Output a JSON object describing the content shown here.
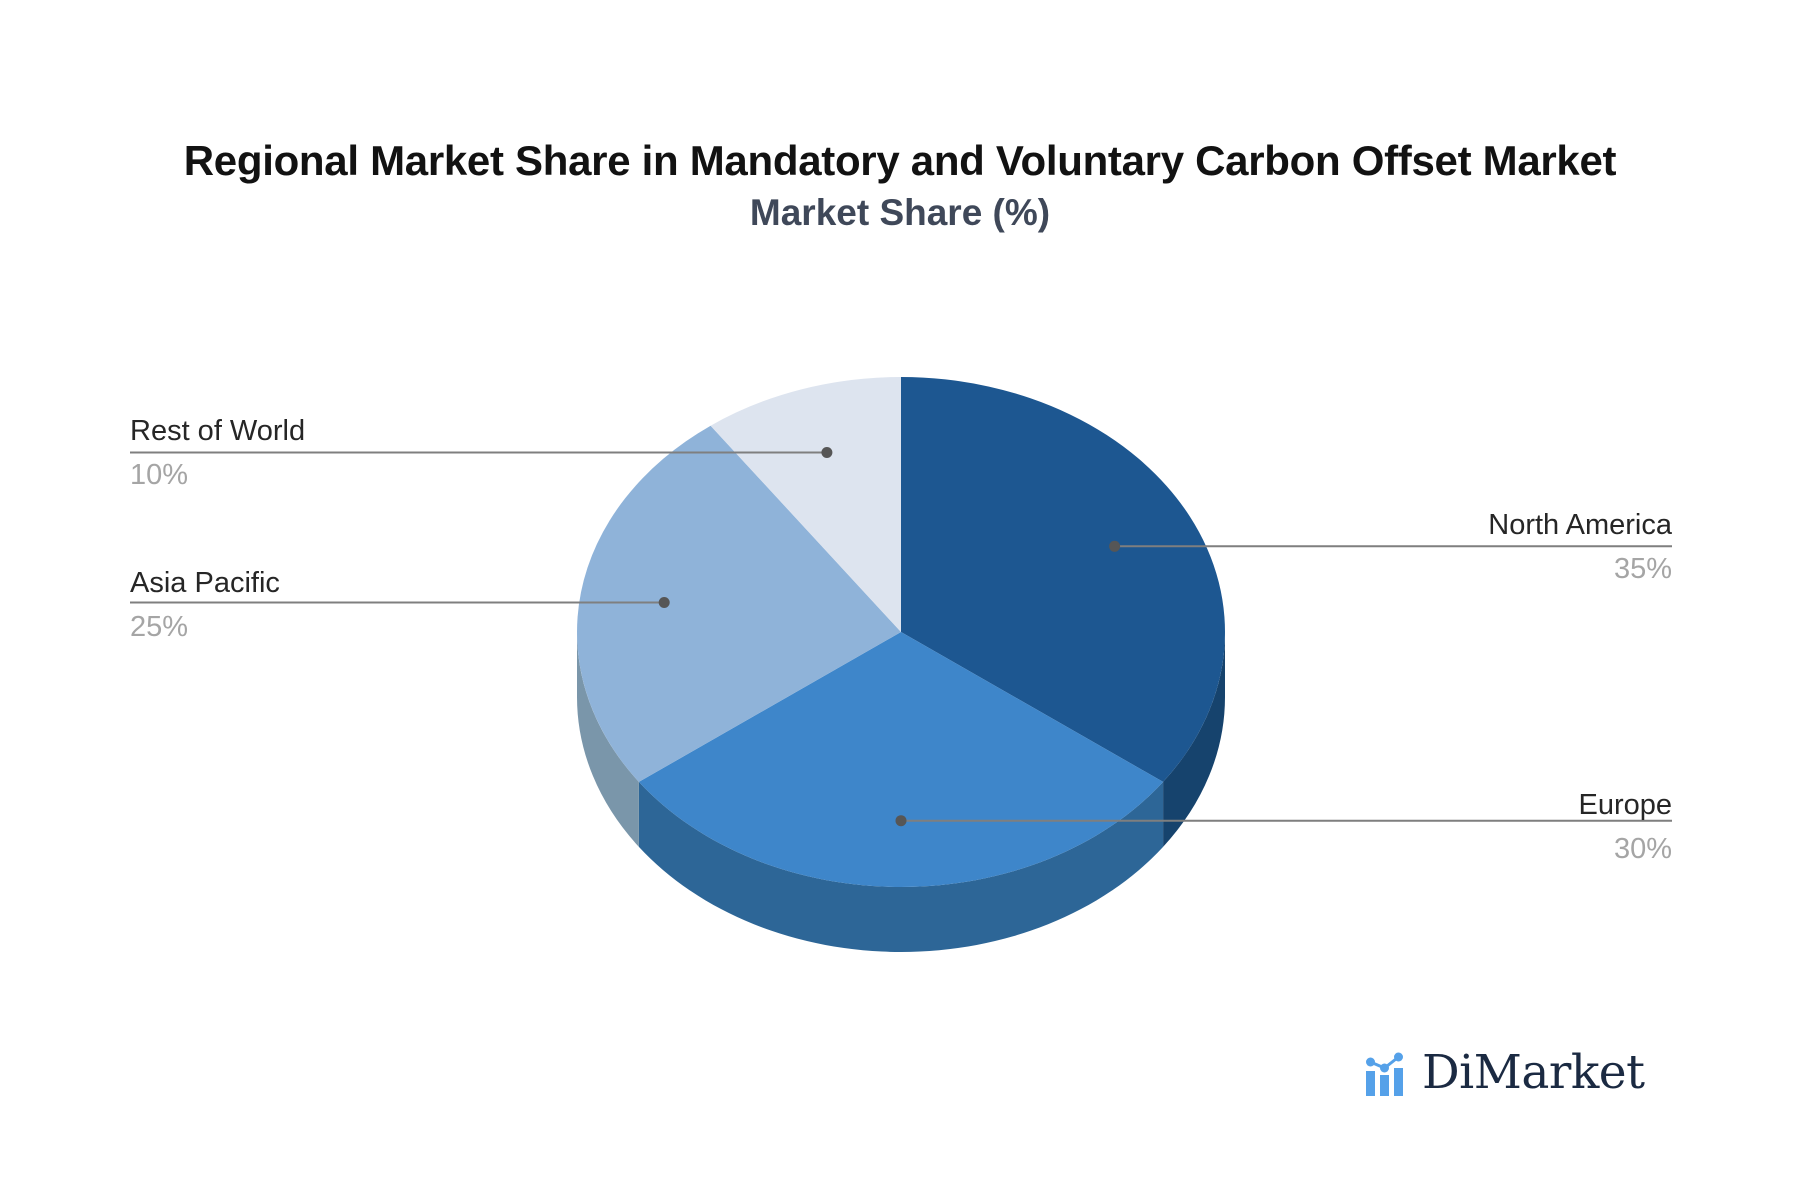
{
  "chart_data": {
    "type": "pie",
    "title": "Regional Market Share in Mandatory and Voluntary Carbon Offset Market",
    "subtitle": "Market Share (%)",
    "unit": "%",
    "is_3d": true,
    "direction": "clockwise",
    "start_angle_deg": 0,
    "legend_position": "none",
    "slices": [
      {
        "label": "North America",
        "value": 35,
        "display_value": "35%",
        "color": "#1d5791",
        "side_color": "#16436d",
        "label_side": "right"
      },
      {
        "label": "Europe",
        "value": 30,
        "display_value": "30%",
        "color": "#3e86ca",
        "side_color": "#2d6697",
        "label_side": "right"
      },
      {
        "label": "Asia Pacific",
        "value": 25,
        "display_value": "25%",
        "color": "#8fb3d9",
        "side_color": "#7a96aa",
        "label_side": "left"
      },
      {
        "label": "Rest of World",
        "value": 10,
        "display_value": "10%",
        "color": "#dde4ef",
        "side_color": "#c4cfdf",
        "label_side": "left"
      }
    ],
    "leader_line_color": "#7f7f7f",
    "leader_dot_color": "#565656",
    "label_color": "#262626",
    "value_color": "#a5a5a5",
    "title_color": "#121212",
    "subtitle_color": "#3f4859"
  },
  "logo": {
    "text": "DiMarket",
    "text_color": "#1b2a42",
    "icon": "bar-line-chart-icon",
    "icon_color": "#55a1e9"
  }
}
